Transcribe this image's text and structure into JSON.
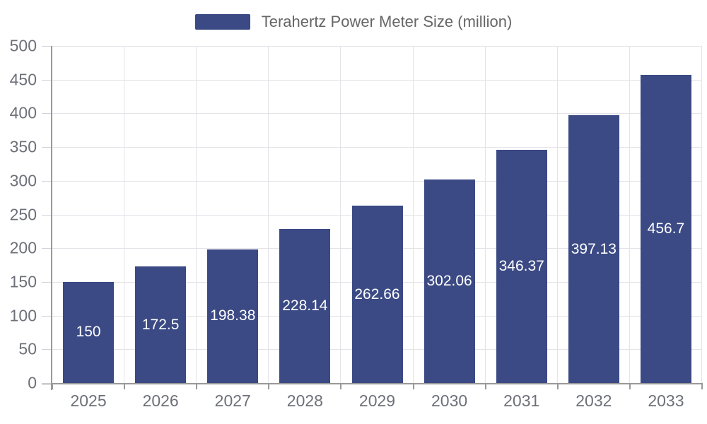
{
  "legend": {
    "label": "Terahertz Power Meter Size (million)"
  },
  "chart_data": {
    "type": "bar",
    "title": "Terahertz Power Meter Size (million)",
    "categories": [
      "2025",
      "2026",
      "2027",
      "2028",
      "2029",
      "2030",
      "2031",
      "2032",
      "2033"
    ],
    "values": [
      150,
      172.5,
      198.38,
      228.14,
      262.66,
      302.06,
      346.37,
      397.13,
      456.7
    ],
    "value_labels": [
      "150",
      "172.5",
      "198.38",
      "228.14",
      "262.66",
      "302.06",
      "346.37",
      "397.13",
      "456.7"
    ],
    "xlabel": "",
    "ylabel": "",
    "ylim": [
      0,
      500
    ],
    "ytick_step": 50,
    "grid": true,
    "legend_position": "top-center",
    "bar_color": "#3b4a84",
    "value_label_color": "#ffffff",
    "axis_line_color": "#999999",
    "gridline_color": "#e3e3e8",
    "tick_label_color": "#6e7079",
    "legend_text_color": "#666666"
  }
}
